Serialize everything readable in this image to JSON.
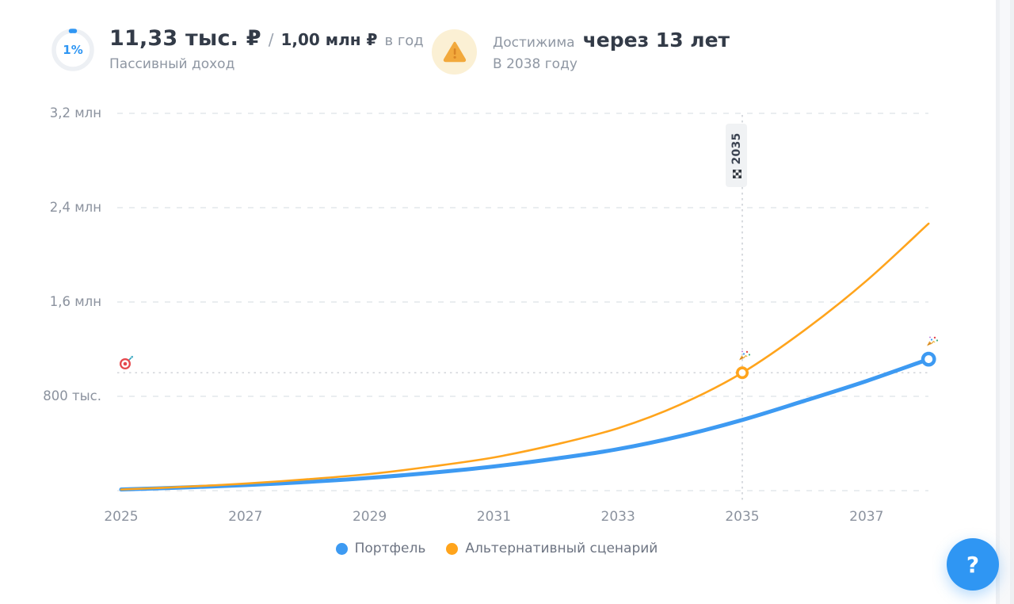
{
  "header": {
    "progress_percent": "1%",
    "income_current": "11,33 тыс. ₽",
    "separator": "/",
    "income_target": "1,00 млн ₽",
    "income_period": "в год",
    "income_subtitle": "Пассивный доход"
  },
  "goal_status": {
    "label": "Достижима",
    "value": "через 13 лет",
    "subtitle": "В 2038 году"
  },
  "chart_data": {
    "type": "line",
    "x_years": [
      2025,
      2026,
      2027,
      2028,
      2029,
      2030,
      2031,
      2032,
      2033,
      2034,
      2035,
      2036,
      2037,
      2038
    ],
    "series": [
      {
        "name": "Портфель",
        "color": "#3d9af2",
        "values_thousand_rub": [
          10,
          27,
          47,
          74,
          108,
          152,
          205,
          272,
          352,
          462,
          600,
          762,
          930,
          1115
        ]
      },
      {
        "name": "Альтернативный сценарий",
        "color": "#ffa41c",
        "values_thousand_rub": [
          10,
          32,
          60,
          97,
          141,
          205,
          282,
          392,
          530,
          730,
          1000,
          1360,
          1780,
          2265
        ]
      }
    ],
    "y_tick_labels": [
      "3,2 млн",
      "2,4 млн",
      "1,6 млн",
      "800 тыс."
    ],
    "y_tick_values_thousand": [
      3200,
      2400,
      1600,
      800
    ],
    "x_tick_labels": [
      "2025",
      "2027",
      "2029",
      "2031",
      "2033",
      "2035",
      "2037"
    ],
    "x_tick_years": [
      2025,
      2027,
      2029,
      2031,
      2033,
      2035,
      2037
    ],
    "goal_line_value_thousand": 1000,
    "goal_year": 2035,
    "goal_year_label": "2035",
    "milestone_markers": [
      {
        "year": 2035,
        "series": "Альтернативный сценарий",
        "icon": "party-popper"
      },
      {
        "year": 2038,
        "series": "Портфель",
        "icon": "party-popper"
      }
    ],
    "target_line_icon": "dart-target",
    "grid": "dashed horizontal, on",
    "legend_position": "bottom-center"
  },
  "legend": [
    {
      "label": "Портфель",
      "color": "#3d9af2"
    },
    {
      "label": "Альтернативный сценарий",
      "color": "#ffa41c"
    }
  ],
  "colors": {
    "accent_blue": "#2f96f3",
    "series_blue": "#3d9af2",
    "series_orange": "#ffa41c",
    "warning_bg": "#fbf0d4",
    "warning_icon": "#f2a93c",
    "grid_line": "#e4e7ec",
    "goal_dotted_line": "#d2d5da",
    "vertical_year_line": "#c6cad1",
    "text_dark": "#333b48",
    "text_gray": "#8f97a3"
  },
  "help_button": {
    "label": "?"
  }
}
